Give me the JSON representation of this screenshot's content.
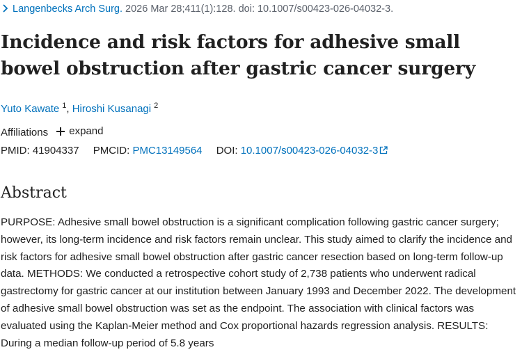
{
  "citation": {
    "journal": "Langenbecks Arch Surg.",
    "details": "2026 Mar 28;411(1):128. doi: 10.1007/s00423-026-04032-3."
  },
  "article": {
    "title": "Incidence and risk factors for adhesive small bowel obstruction after gastric cancer surgery"
  },
  "authors": [
    {
      "name": "Yuto Kawate",
      "affiliation": "1"
    },
    {
      "name": "Hiroshi Kusanagi",
      "affiliation": "2"
    }
  ],
  "author_separator": ",",
  "affiliations": {
    "label": "Affiliations",
    "expand_label": "expand"
  },
  "identifiers": {
    "pmid_label": "PMID:",
    "pmid": "41904337",
    "pmcid_label": "PMCID:",
    "pmcid": "PMC13149564",
    "doi_label": "DOI:",
    "doi": "10.1007/s00423-026-04032-3"
  },
  "abstract": {
    "heading": "Abstract",
    "text": "PURPOSE: Adhesive small bowel obstruction is a significant complication following gastric cancer surgery; however, its long-term incidence and risk factors remain unclear. This study aimed to clarify the incidence and risk factors for adhesive small bowel obstruction after gastric cancer resection based on long-term follow-up data. METHODS: We conducted a retrospective cohort study of 2,738 patients who underwent radical gastrectomy for gastric cancer at our institution between January 1993 and December 2022. The development of adhesive small bowel obstruction was set as the endpoint. The association with clinical factors was evaluated using the Kaplan-Meier method and Cox proportional hazards regression analysis. RESULTS: During a median follow-up period of 5.8 years"
  },
  "colors": {
    "link": "#0071bc",
    "text": "#212121",
    "muted": "#5b616b"
  },
  "icons": {
    "journal": "chevron-right-icon",
    "expand": "plus-icon",
    "external": "external-link-icon"
  }
}
